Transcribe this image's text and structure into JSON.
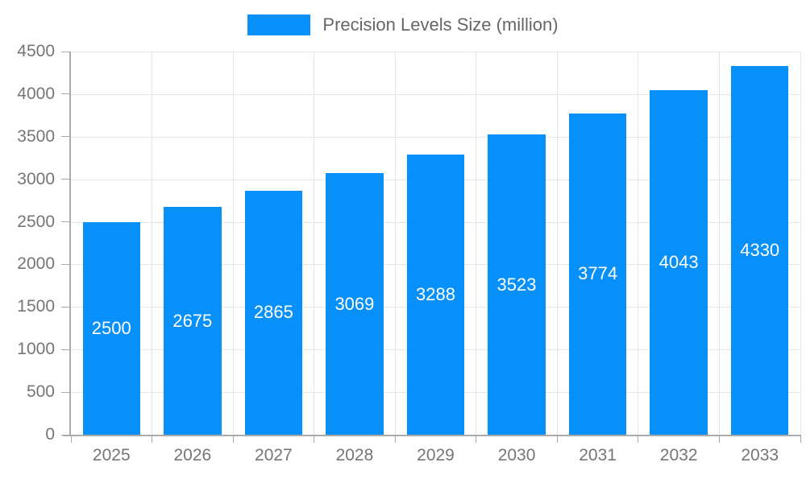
{
  "legend": {
    "label": "Precision Levels Size (million)"
  },
  "colors": {
    "bar": "#0890fa",
    "grid": "#e6e6e6",
    "axis": "#aaaaaa",
    "tick_text": "#757575",
    "legend_text": "#666666",
    "bar_label_text": "#ffffff",
    "background": "#ffffff"
  },
  "chart_data": {
    "type": "bar",
    "title": "Precision Levels Size (million)",
    "categories": [
      "2025",
      "2026",
      "2027",
      "2028",
      "2029",
      "2030",
      "2031",
      "2032",
      "2033"
    ],
    "values": [
      2500,
      2675,
      2865,
      3069,
      3288,
      3523,
      3774,
      4043,
      4330
    ],
    "xlabel": "",
    "ylabel": "",
    "ylim": [
      0,
      4500
    ],
    "ytick_step": 500,
    "grid": true,
    "legend_position": "top-center",
    "bar_label_position": "inside-middle"
  }
}
